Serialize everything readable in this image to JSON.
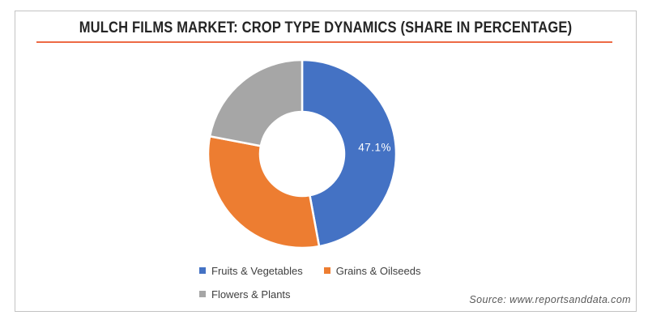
{
  "page": {
    "background_color": "#FFFFFF",
    "frame_border_color": "#C3C3C3",
    "title_underline_color": "#ED6A45"
  },
  "chart_data": {
    "type": "pie",
    "subtype": "donut",
    "title": "MULCH FILMS MARKET: CROP TYPE DYNAMICS (SHARE IN PERCENTAGE)",
    "units": "percent",
    "direction": "clockwise",
    "start_angle_deg": 0,
    "inner_radius_ratio": 0.45,
    "legend_position": "bottom",
    "data_label_color": "#FFFFFF",
    "slices": [
      {
        "name": "Fruits & Vegetables",
        "value": 47.1,
        "color": "#4472C4",
        "label": "47.1%"
      },
      {
        "name": "Grains & Oilseeds",
        "value": 30.9,
        "color": "#ED7D31",
        "label": ""
      },
      {
        "name": "Flowers & Plants",
        "value": 22.0,
        "color": "#A6A6A6",
        "label": ""
      }
    ]
  },
  "footer": {
    "source": "Source: www.reportsanddata.com"
  }
}
